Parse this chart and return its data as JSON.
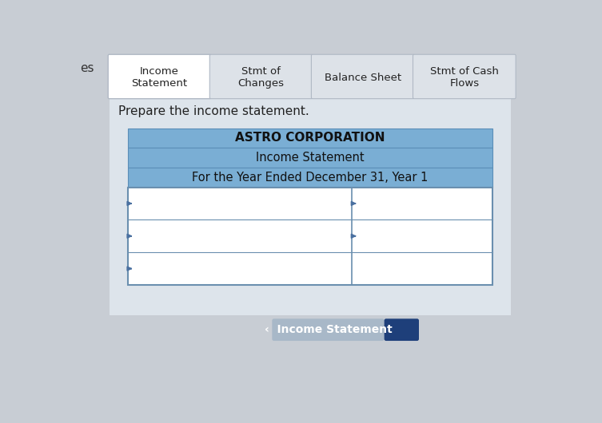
{
  "bg_color": "#c8cdd4",
  "tab_labels": [
    "Income\nStatement",
    "Stmt of\nChanges",
    "Balance Sheet",
    "Stmt of Cash\nFlows"
  ],
  "tab_active": 0,
  "tab_bg_active": "#ffffff",
  "tab_bg_inactive": "#dde2e8",
  "tab_border": "#b0b8c4",
  "content_bg": "#dde4eb",
  "instruction_text": "Prepare the income statement.",
  "header_lines": [
    "ASTRO CORPORATION",
    "Income Statement",
    "For the Year Ended December 31, Year 1"
  ],
  "header_bold": [
    true,
    false,
    false
  ],
  "header_bg": "#7aaed4",
  "header_line_color": "#5b8eb8",
  "table_bg": "#ffffff",
  "table_border": "#6a8faf",
  "table_rows": 3,
  "col_split": 0.615,
  "arrow_color": "#4a70a0",
  "nav_btn_text": "‹  Income Statement",
  "nav_btn_bg": "#a8b8c8",
  "nav_btn_text_color": "#ffffff",
  "nav_btn_right_bg": "#1e3f7a",
  "side_text": "es"
}
